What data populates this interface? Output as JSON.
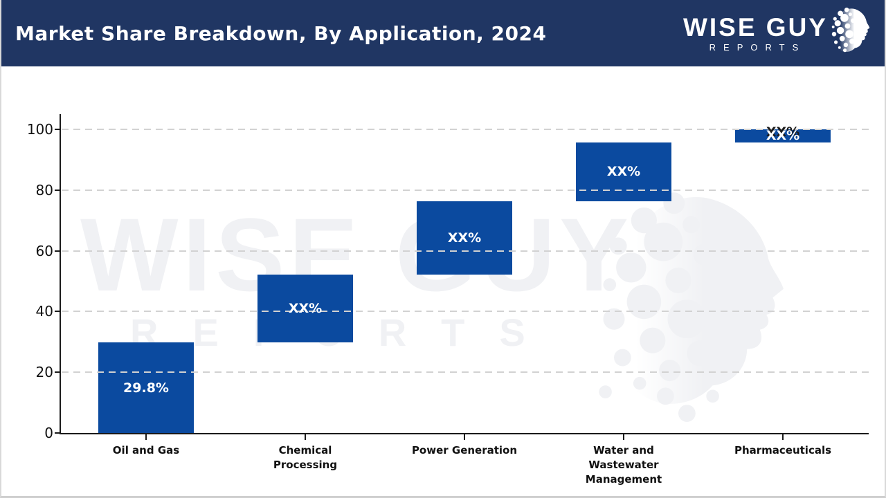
{
  "header": {
    "title": "Market Share Breakdown, By Application, 2024",
    "logo": {
      "line1": "WISE GUY",
      "line2": "REPORTS",
      "icon": "head-profile-dots-icon"
    }
  },
  "watermark": {
    "line1": "WISE GUY",
    "line2": "REPORTS",
    "icon": "head-profile-dots-watermark"
  },
  "chart_data": {
    "type": "bar",
    "subtype": "waterfall",
    "title": "Market Share Breakdown, By Application, 2024",
    "categories": [
      "Oil and Gas",
      "Chemical Processing",
      "Power Generation",
      "Water and Wastewater Management",
      "Pharmaceuticals"
    ],
    "tick_lines": [
      [
        "Oil and Gas"
      ],
      [
        "Chemical",
        "Processing"
      ],
      [
        "Power Generation"
      ],
      [
        "Water and",
        "Wastewater",
        "Management"
      ],
      [
        "Pharmaceuticals"
      ]
    ],
    "series": [
      {
        "name": "Market Share",
        "segments": [
          {
            "category": "Oil and Gas",
            "start": 0,
            "end": 29.8,
            "label": "29.8%"
          },
          {
            "category": "Chemical Processing",
            "start": 29.8,
            "end": 52.1,
            "label": "XX%"
          },
          {
            "category": "Power Generation",
            "start": 52.1,
            "end": 76.3,
            "label": "XX%"
          },
          {
            "category": "Water and Wastewater Management",
            "start": 76.3,
            "end": 95.7,
            "label": "XX%"
          },
          {
            "category": "Pharmaceuticals",
            "start": 95.7,
            "end": 100,
            "label": "XX%"
          }
        ]
      }
    ],
    "xlabel": "",
    "ylabel": "",
    "ylim": [
      0,
      105
    ],
    "yticks": [
      0,
      20,
      40,
      60,
      80,
      100
    ],
    "grid": "horizontal-dashed",
    "legend": "none",
    "bar_color": "#0b4a9f",
    "bar_label_color": "#ffffff",
    "axis_color": "#1a1a1a",
    "grid_color": "#d2d2d2",
    "header_color": "#203663"
  }
}
